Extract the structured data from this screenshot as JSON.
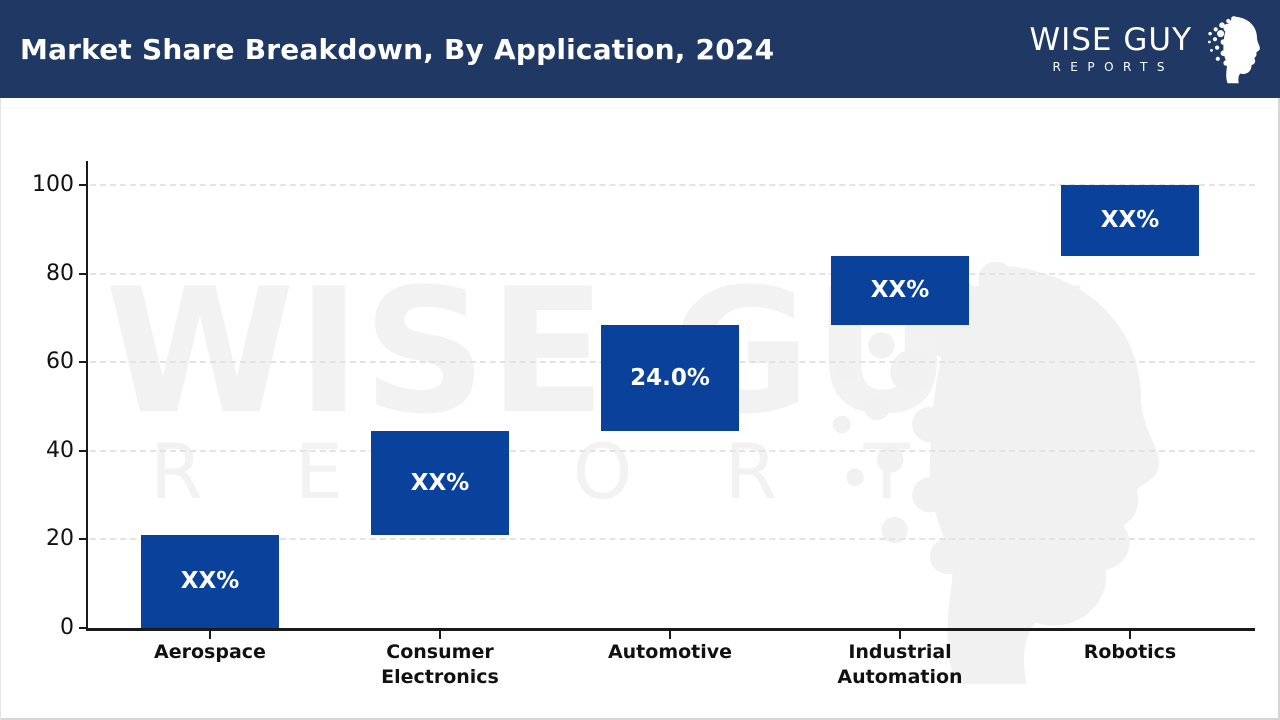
{
  "header": {
    "title": "Market Share Breakdown, By Application, 2024",
    "bg_color": "#1f3864",
    "logo": {
      "line1": "WISE GUY",
      "line2": "REPORTS"
    }
  },
  "watermark": {
    "line1": "WISE GUY",
    "line2": "REPORTS"
  },
  "chart_data": {
    "type": "bar",
    "subtype": "floating-waterfall",
    "title": "Market Share Breakdown, By Application, 2024",
    "categories": [
      "Aerospace",
      "Consumer\nElectronics",
      "Automotive",
      "Industrial\nAutomation",
      "Robotics"
    ],
    "series": [
      {
        "name": "Market share (%)",
        "starts": [
          0,
          21,
          44.5,
          68.5,
          84
        ],
        "ends": [
          21,
          44.5,
          68.5,
          84,
          100
        ],
        "values": [
          21,
          23.5,
          24,
          15.5,
          16
        ]
      }
    ],
    "bar_labels": [
      "XX%",
      "XX%",
      "24.0%",
      "XX%",
      "XX%"
    ],
    "yticks": [
      0,
      20,
      40,
      60,
      80,
      100
    ],
    "ylim": [
      0,
      107
    ],
    "xlabel": "",
    "ylabel": "",
    "grid": "horizontal-dashed",
    "legend": "none",
    "bar_color": "#0a419b",
    "axis_color": "#1a1a1a",
    "gridline_color": "#e3e3e3"
  }
}
